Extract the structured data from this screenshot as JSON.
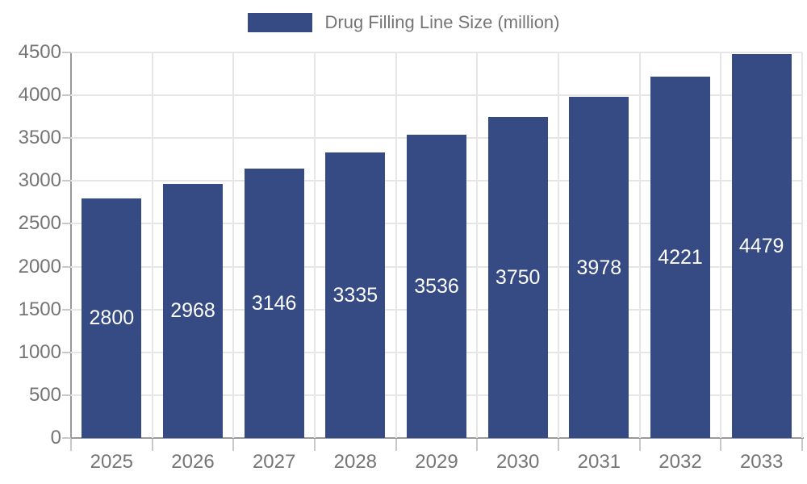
{
  "chart_data": {
    "type": "bar",
    "title": "Drug Filling Line Size (million)",
    "legend_label": "Drug Filling Line Size (million)",
    "categories": [
      "2025",
      "2026",
      "2027",
      "2028",
      "2029",
      "2030",
      "2031",
      "2032",
      "2033"
    ],
    "values": [
      2800,
      2968,
      3146,
      3335,
      3536,
      3750,
      3978,
      4221,
      4479
    ],
    "value_labels": [
      "2800",
      "2968",
      "3146",
      "3335",
      "3536",
      "3750",
      "3978",
      "4221",
      "4479"
    ],
    "xlabel": "",
    "ylabel": "",
    "ylim": [
      0,
      4500
    ],
    "y_ticks": [
      0,
      500,
      1000,
      1500,
      2000,
      2500,
      3000,
      3500,
      4000,
      4500
    ],
    "y_tick_labels": [
      "0",
      "500",
      "1000",
      "1500",
      "2000",
      "2500",
      "3000",
      "3500",
      "4000",
      "4500"
    ],
    "grid": "on",
    "legend_position": "top-center",
    "colors": {
      "bar": "#364a84",
      "bar_label_text": "#ffffff",
      "axis_text": "#757575",
      "legend_text": "#757575",
      "gridline": "#e6e6e6",
      "axis_line": "#9a9a9a",
      "tick_line": "#c9c9c9",
      "background": "#ffffff"
    }
  }
}
